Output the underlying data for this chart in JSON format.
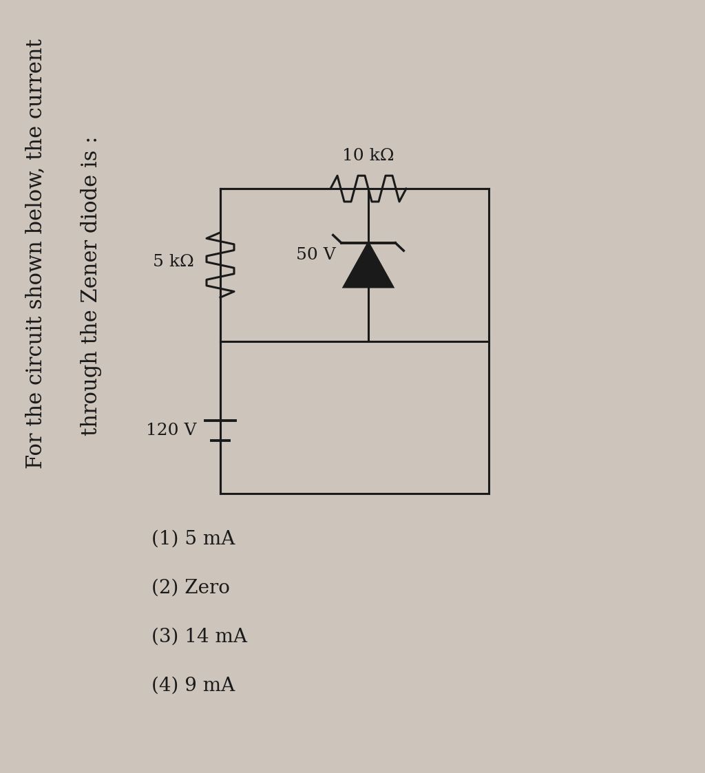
{
  "bg_color": "#cdc5bc",
  "title_line1": "For the circuit shown below, the current",
  "title_line2": "through the Zener diode is :",
  "voltage_source": "120 V",
  "resistor1_label": "5 kΩ",
  "resistor2_label": "10 kΩ",
  "zener_label": "50 V",
  "options": [
    "(1) 5 mA",
    "(2) Zero",
    "(3) 14 mA",
    "(4) 9 mA"
  ],
  "text_color": "#1a1a1a",
  "circuit_color": "#1a1a1a",
  "font_size_title": 22,
  "font_size_labels": 18,
  "font_size_options": 20
}
